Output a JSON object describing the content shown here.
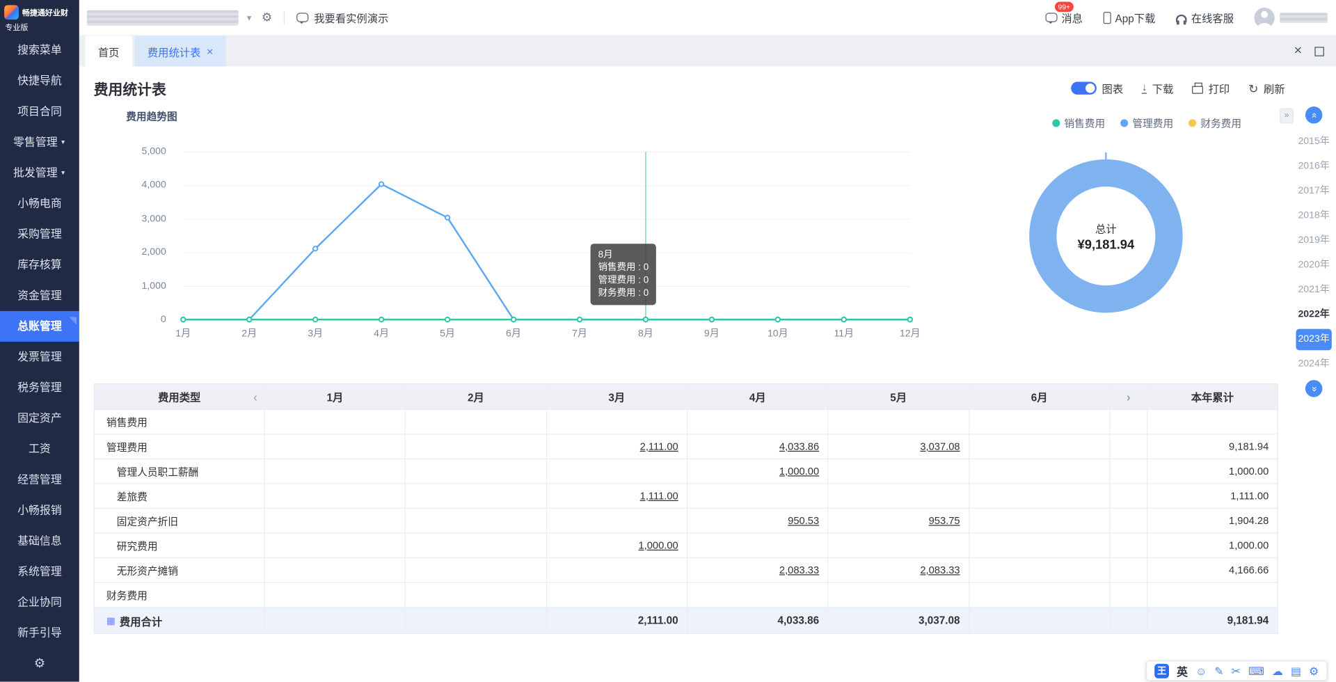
{
  "colors": {
    "accent": "#3D73F5",
    "year_selected": "#4A8CF7",
    "tab_active_bg": "#d9e7fb",
    "badge_red": "#f5483d"
  },
  "app": {
    "logo_title": "畅捷通好业财",
    "logo_subtitle": "专业版"
  },
  "sidebar": {
    "items": [
      {
        "label": "搜索菜单"
      },
      {
        "label": "快捷导航"
      },
      {
        "label": "项目合同"
      },
      {
        "label": "零售管理",
        "dropdown": true
      },
      {
        "label": "批发管理",
        "dropdown": true
      },
      {
        "label": "小畅电商"
      },
      {
        "label": "采购管理"
      },
      {
        "label": "库存核算"
      },
      {
        "label": "资金管理"
      },
      {
        "label": "总账管理",
        "active": true
      },
      {
        "label": "发票管理"
      },
      {
        "label": "税务管理"
      },
      {
        "label": "固定资产"
      },
      {
        "label": "工资"
      },
      {
        "label": "经营管理"
      },
      {
        "label": "小畅报销"
      },
      {
        "label": "基础信息"
      },
      {
        "label": "系统管理"
      },
      {
        "label": "企业协同"
      },
      {
        "label": "新手引导"
      }
    ]
  },
  "topbar": {
    "demo_link": "我要看实例演示",
    "messages_label": "消息",
    "messages_badge": "99+",
    "app_download_label": "App下载",
    "support_label": "在线客服"
  },
  "tabs": {
    "items": [
      {
        "label": "首页",
        "active": false,
        "closable": false
      },
      {
        "label": "费用统计表",
        "active": true,
        "closable": true
      }
    ]
  },
  "page": {
    "title": "费用统计表",
    "toggle_label": "图表",
    "download_label": "下载",
    "print_label": "打印",
    "refresh_label": "刷新"
  },
  "years": {
    "items": [
      "2015年",
      "2016年",
      "2017年",
      "2018年",
      "2019年",
      "2020年",
      "2021年",
      "2022年",
      "2023年",
      "2024年"
    ],
    "selected": "2023年",
    "emphasized": "2022年"
  },
  "chart_data": [
    {
      "type": "line",
      "title": "费用趋势图",
      "x": [
        "1月",
        "2月",
        "3月",
        "4月",
        "5月",
        "6月",
        "7月",
        "8月",
        "9月",
        "10月",
        "11月",
        "12月"
      ],
      "series": [
        {
          "name": "销售费用",
          "color": "#2EC7A6",
          "values": [
            0,
            0,
            0,
            0,
            0,
            0,
            0,
            0,
            0,
            0,
            0,
            0
          ]
        },
        {
          "name": "管理费用",
          "color": "#5CA8F5",
          "values": [
            0,
            0,
            2111,
            4033.86,
            3037.08,
            0,
            0,
            0,
            0,
            0,
            0,
            0
          ]
        },
        {
          "name": "财务费用",
          "color": "#F6C94A",
          "values": [
            0,
            0,
            0,
            0,
            0,
            0,
            0,
            0,
            0,
            0,
            0,
            0
          ]
        }
      ],
      "ylim": [
        0,
        5000
      ],
      "yticks": [
        0,
        1000,
        2000,
        3000,
        4000,
        5000
      ],
      "grid": true,
      "legend_position": "top-right",
      "tooltip": {
        "x": "8月",
        "lines": [
          "8月",
          "销售费用 : 0",
          "管理费用 : 0",
          "财务费用 : 0"
        ]
      }
    },
    {
      "type": "donut",
      "center_label": "总计",
      "center_value": "¥9,181.94",
      "segments": [
        {
          "name": "管理费用",
          "value": 9181.94,
          "color": "#7FB3F0"
        }
      ]
    }
  ],
  "table": {
    "headers": [
      "费用类型",
      "1月",
      "2月",
      "3月",
      "4月",
      "5月",
      "6月",
      "本年累计"
    ],
    "rows": [
      {
        "name": "销售费用",
        "sub": false,
        "grand": false,
        "m": [
          "",
          "",
          "",
          "",
          "",
          ""
        ],
        "total": ""
      },
      {
        "name": "管理费用",
        "sub": false,
        "grand": false,
        "m": [
          "",
          "",
          "2,111.00",
          "4,033.86",
          "3,037.08",
          ""
        ],
        "total": "9,181.94"
      },
      {
        "name": "管理人员职工薪酬",
        "sub": true,
        "grand": false,
        "m": [
          "",
          "",
          "",
          "1,000.00",
          "",
          ""
        ],
        "total": "1,000.00"
      },
      {
        "name": "差旅费",
        "sub": true,
        "grand": false,
        "m": [
          "",
          "",
          "1,111.00",
          "",
          "",
          ""
        ],
        "total": "1,111.00"
      },
      {
        "name": "固定资产折旧",
        "sub": true,
        "grand": false,
        "m": [
          "",
          "",
          "",
          "950.53",
          "953.75",
          ""
        ],
        "total": "1,904.28"
      },
      {
        "name": "研究费用",
        "sub": true,
        "grand": false,
        "m": [
          "",
          "",
          "1,000.00",
          "",
          "",
          ""
        ],
        "total": "1,000.00"
      },
      {
        "name": "无形资产摊销",
        "sub": true,
        "grand": false,
        "m": [
          "",
          "",
          "",
          "2,083.33",
          "2,083.33",
          ""
        ],
        "total": "4,166.66"
      },
      {
        "name": "财务费用",
        "sub": false,
        "grand": false,
        "m": [
          "",
          "",
          "",
          "",
          "",
          ""
        ],
        "total": ""
      },
      {
        "name": "费用合计",
        "sub": false,
        "grand": true,
        "m": [
          "",
          "",
          "2,111.00",
          "4,033.86",
          "3,037.08",
          ""
        ],
        "total": "9,181.94"
      }
    ]
  },
  "ime": {
    "logo": "王",
    "lang": "英"
  }
}
